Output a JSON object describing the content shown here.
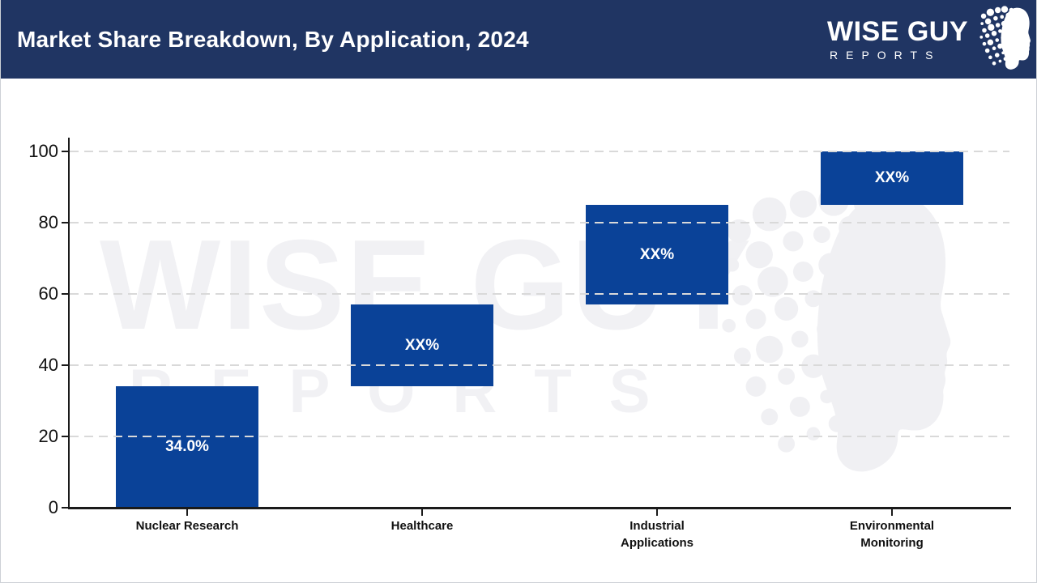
{
  "header": {
    "title": "Market Share Breakdown, By Application, 2024",
    "logo": {
      "line1": "WISE GUY",
      "line2": "REPORTS"
    }
  },
  "watermark": {
    "line1": "WISE GUY",
    "line2": "REPORTS"
  },
  "colors": {
    "header_bg": "#203563",
    "bar": "#0a4298",
    "grid": "#d9d9d9",
    "axis": "#1a1a1a",
    "watermark": "#f1f1f4",
    "bar_label": "#ffffff"
  },
  "chart_data": {
    "type": "bar",
    "subtype": "waterfall",
    "title": "Market Share Breakdown, By Application, 2024",
    "categories": [
      "Nuclear Research",
      "Healthcare",
      "Industrial\nApplications",
      "Environmental\nMonitoring"
    ],
    "bars": [
      {
        "category": "Nuclear Research",
        "start": 0,
        "end": 34,
        "label": "34.0%"
      },
      {
        "category": "Healthcare",
        "start": 34,
        "end": 57,
        "label": "XX%"
      },
      {
        "category": "Industrial Applications",
        "start": 57,
        "end": 85,
        "label": "XX%"
      },
      {
        "category": "Environmental Monitoring",
        "start": 85,
        "end": 100,
        "label": "XX%"
      }
    ],
    "ylim": [
      0,
      100
    ],
    "yticks": [
      0,
      20,
      40,
      60,
      80,
      100
    ],
    "grid": "horizontal-dashed",
    "legend": null
  }
}
